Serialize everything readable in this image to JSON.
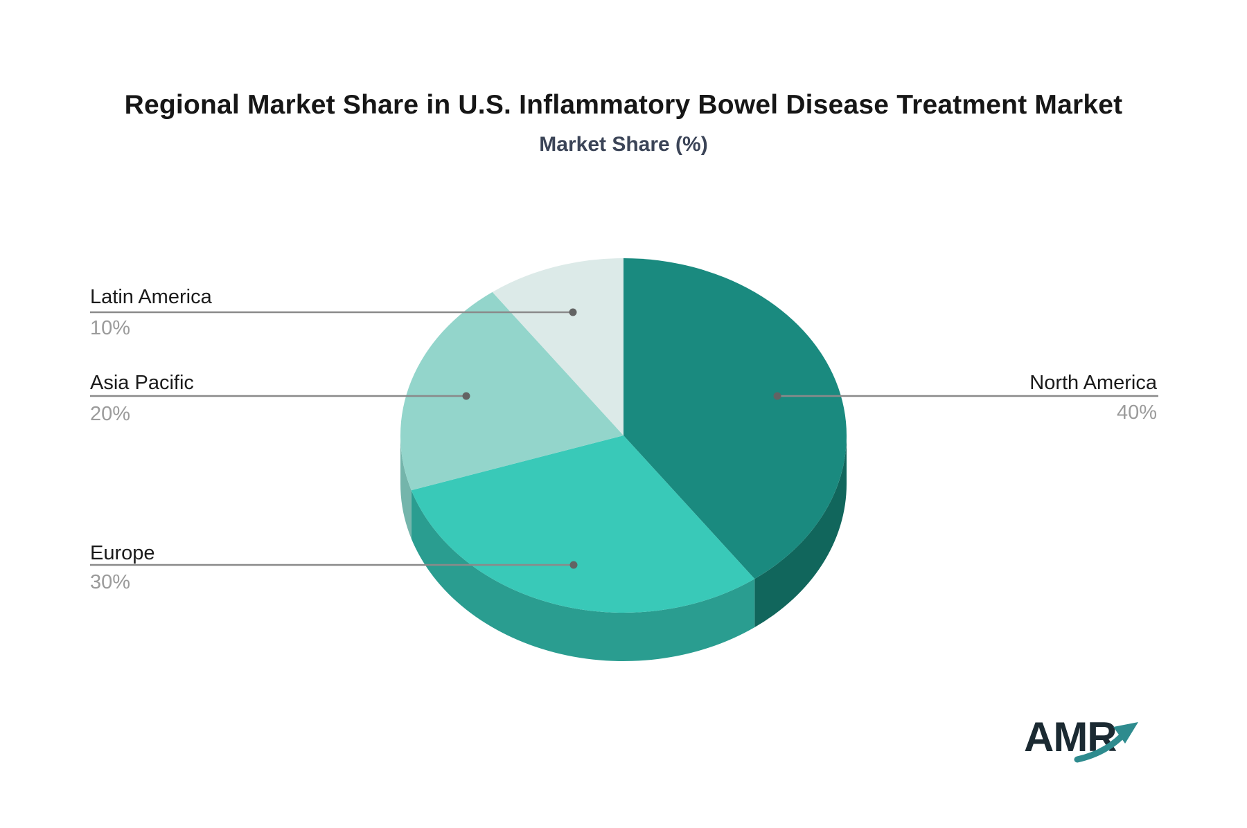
{
  "header": {
    "title": "Regional Market Share in U.S. Inflammatory Bowel Disease Treatment Market",
    "subtitle": "Market Share (%)"
  },
  "chart_data": {
    "type": "pie",
    "style": "3d",
    "title": "Regional Market Share in U.S. Inflammatory Bowel Disease Treatment Market",
    "subtitle": "Market Share (%)",
    "unit": "%",
    "direction": "clockwise",
    "start_position": "top",
    "legend": "none",
    "slices": [
      {
        "name": "North America",
        "value": 40,
        "pct_label": "40%",
        "color": "#1a8a7f",
        "side_color": "#11665c",
        "label_side": "right"
      },
      {
        "name": "Europe",
        "value": 30,
        "pct_label": "30%",
        "color": "#39c9b8",
        "side_color": "#2a9d90",
        "label_side": "left"
      },
      {
        "name": "Asia Pacific",
        "value": 20,
        "pct_label": "20%",
        "color": "#93d5cb",
        "side_color": "#74b5ab",
        "label_side": "left"
      },
      {
        "name": "Latin America",
        "value": 10,
        "pct_label": "10%",
        "color": "#dceae8",
        "side_color": "#bcd2cf",
        "label_side": "left"
      }
    ],
    "label_colors": {
      "name": "#1a1a1a",
      "percent": "#9b9b9b"
    },
    "leader_line_color": "#8a8a8a",
    "leader_dot_color": "#636363"
  },
  "branding": {
    "logo_text": "AMR",
    "logo_text_color": "#1b2a32",
    "logo_arrow_color": "#2e8b8e"
  }
}
